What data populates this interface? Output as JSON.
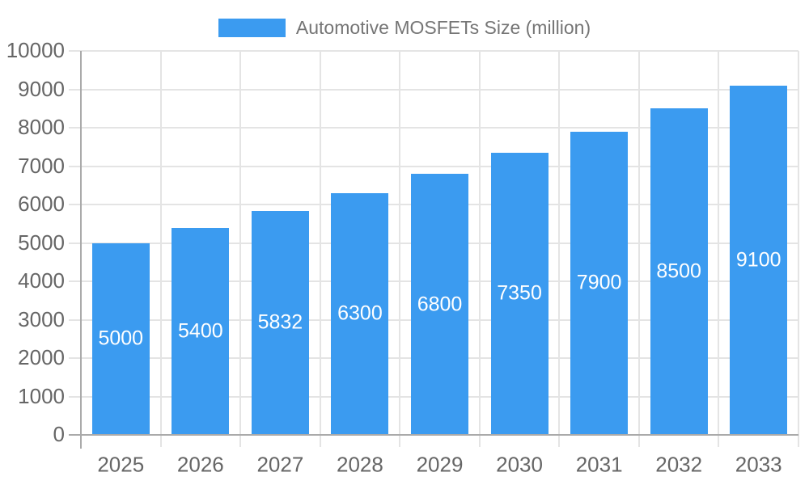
{
  "chart_data": {
    "type": "bar",
    "title": "Automotive MOSFETs Size (million)",
    "categories": [
      "2025",
      "2026",
      "2027",
      "2028",
      "2029",
      "2030",
      "2031",
      "2032",
      "2033"
    ],
    "series": [
      {
        "name": "Automotive MOSFETs Size (million)",
        "values": [
          5000,
          5400,
          5832,
          6300,
          6800,
          7350,
          7900,
          8500,
          9100
        ]
      }
    ],
    "bar_value_labels": [
      "5000",
      "5400",
      "5832",
      "6300",
      "6800",
      "7350",
      "7900",
      "8500",
      "9100"
    ],
    "xlabel": "",
    "ylabel": "",
    "ylim": [
      0,
      10000
    ],
    "ytick_step": 1000,
    "ytick_labels": [
      "0",
      "1000",
      "2000",
      "3000",
      "4000",
      "5000",
      "6000",
      "7000",
      "8000",
      "9000",
      "10000"
    ],
    "grid": "horizontal gridlines each 1000 and vertical gridlines at category boundaries, with short outside ticks",
    "legend_position": "top-center",
    "value_labels_position": "centered inside bars",
    "colors": {
      "bar": "#3B9BF0",
      "gridline": "#E4E4E4",
      "axis_line": "#AAAAAA",
      "axis_label_text": "#666666",
      "legend_text": "#757575",
      "bar_value_text": "#FFFFFF",
      "background": "#FFFFFF"
    }
  }
}
